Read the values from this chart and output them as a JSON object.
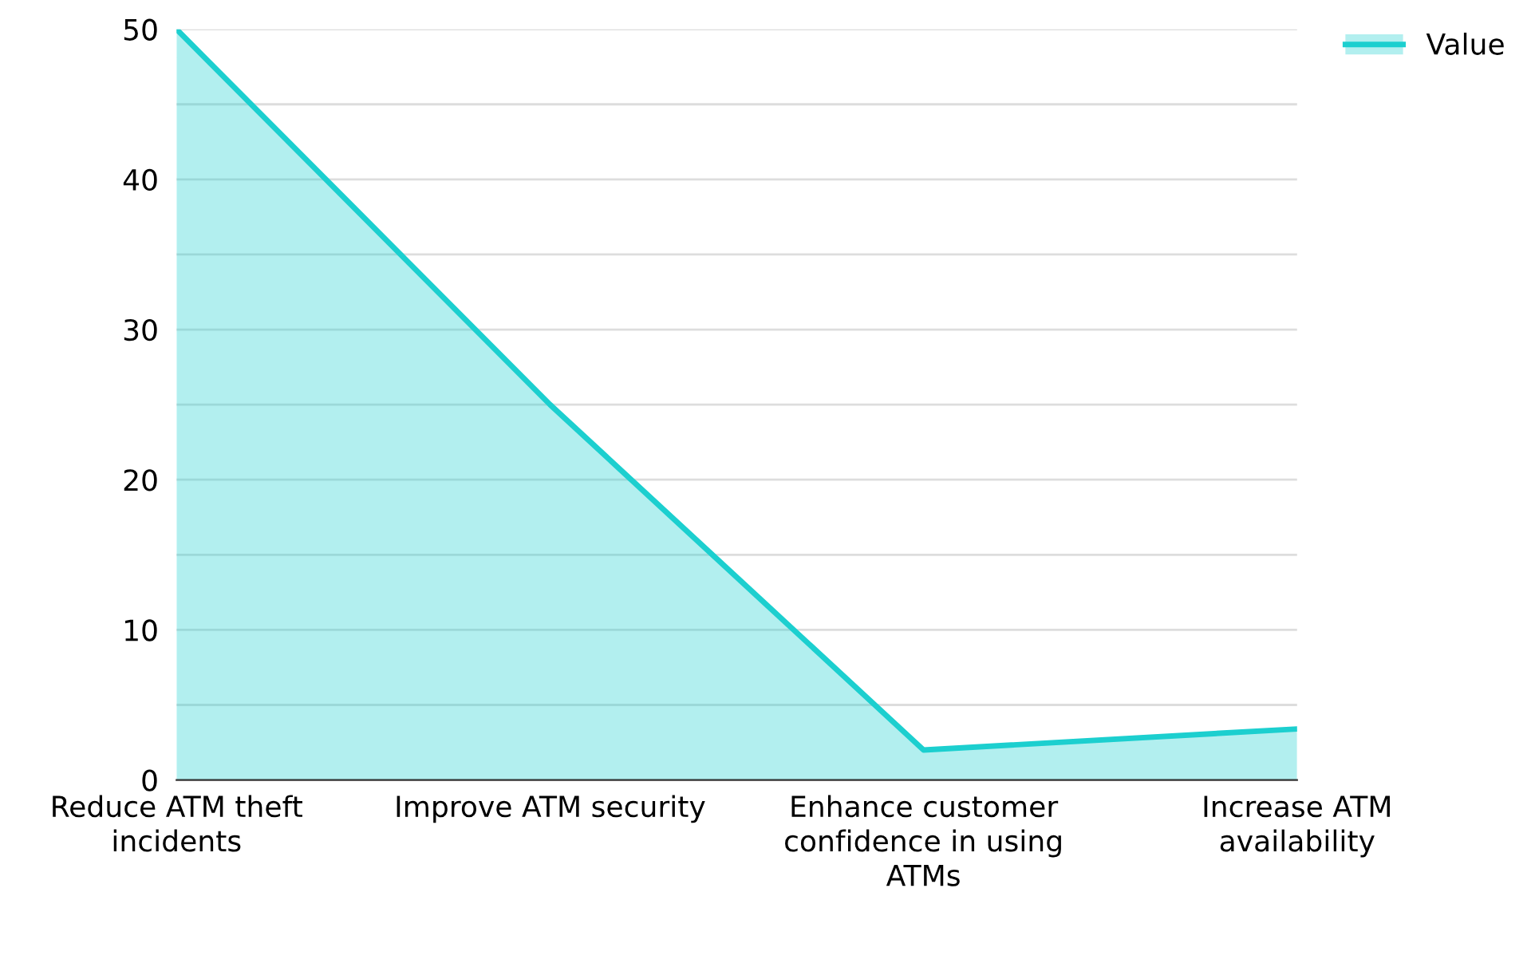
{
  "chart_data": {
    "type": "area",
    "categories": [
      "Reduce ATM theft incidents",
      "Improve ATM security",
      "Enhance customer confidence in using ATMs",
      "Increase ATM availability"
    ],
    "series": [
      {
        "name": "Value",
        "color": "#1ccfcf",
        "values": [
          50,
          25,
          2,
          3.4
        ]
      }
    ],
    "ylim": [
      0,
      50
    ],
    "yticks": [
      0,
      {
        "value": 5,
        "label": null
      },
      10,
      {
        "value": 15,
        "label": null
      },
      20,
      {
        "value": 25,
        "label": null
      },
      30,
      {
        "value": 35,
        "label": null
      },
      40,
      {
        "value": 45,
        "label": null
      },
      50
    ],
    "grid": "y",
    "legend": "top right"
  }
}
